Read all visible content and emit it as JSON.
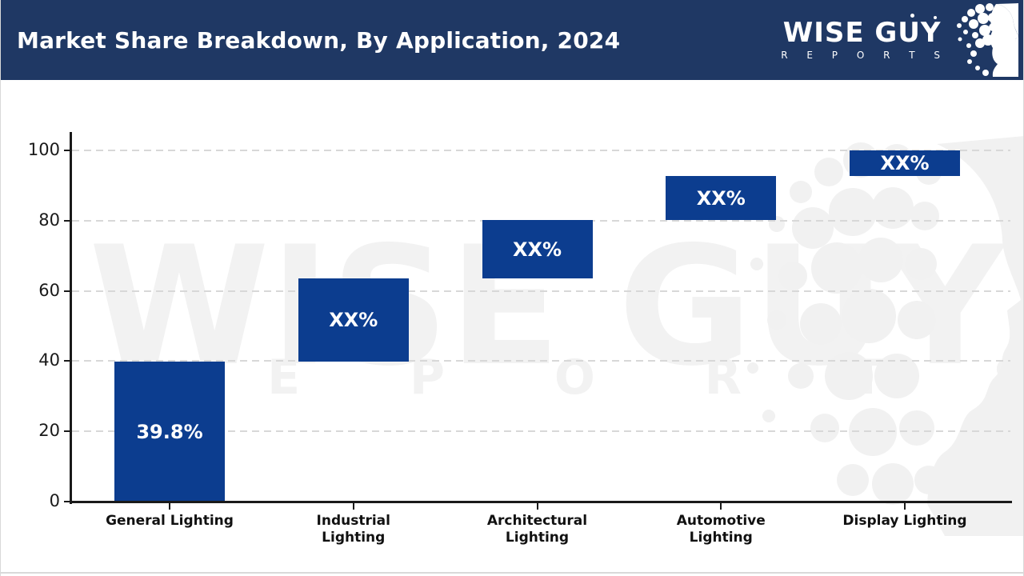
{
  "header": {
    "title": "Market Share Breakdown, By Application, 2024",
    "bg_color": "#1f3864",
    "logo": {
      "text": "WISE GUY",
      "sub": "R E P O R T S"
    }
  },
  "watermark": {
    "text": "WISE GUY",
    "sub": "R E P O R T S"
  },
  "chart_data": {
    "type": "bar",
    "subtype": "waterfall",
    "title": "Market Share Breakdown, By Application, 2024",
    "xlabel": "",
    "ylabel": "",
    "ylim": [
      0,
      105
    ],
    "yticks": [
      0,
      20,
      40,
      60,
      80,
      100
    ],
    "grid": "horizontal-dashed",
    "legend": "none",
    "bar_color": "#0c3d8f",
    "bar_label_color": "#ffffff",
    "categories": [
      "General Lighting",
      "Industrial Lighting",
      "Architectural Lighting",
      "Automotive Lighting",
      "Display Lighting"
    ],
    "category_label_lines": [
      [
        "General Lighting"
      ],
      [
        "Industrial",
        "Lighting"
      ],
      [
        "Architectural",
        "Lighting"
      ],
      [
        "Automotive",
        "Lighting"
      ],
      [
        "Display Lighting"
      ]
    ],
    "segments": [
      {
        "category": "General Lighting",
        "start": 0,
        "end": 39.8,
        "label": "39.8%"
      },
      {
        "category": "Industrial Lighting",
        "start": 39.8,
        "end": 63.5,
        "label": "XX%"
      },
      {
        "category": "Architectural Lighting",
        "start": 63.5,
        "end": 80.1,
        "label": "XX%"
      },
      {
        "category": "Automotive Lighting",
        "start": 80.1,
        "end": 92.6,
        "label": "XX%"
      },
      {
        "category": "Display Lighting",
        "start": 92.6,
        "end": 100,
        "label": "XX%"
      }
    ]
  }
}
